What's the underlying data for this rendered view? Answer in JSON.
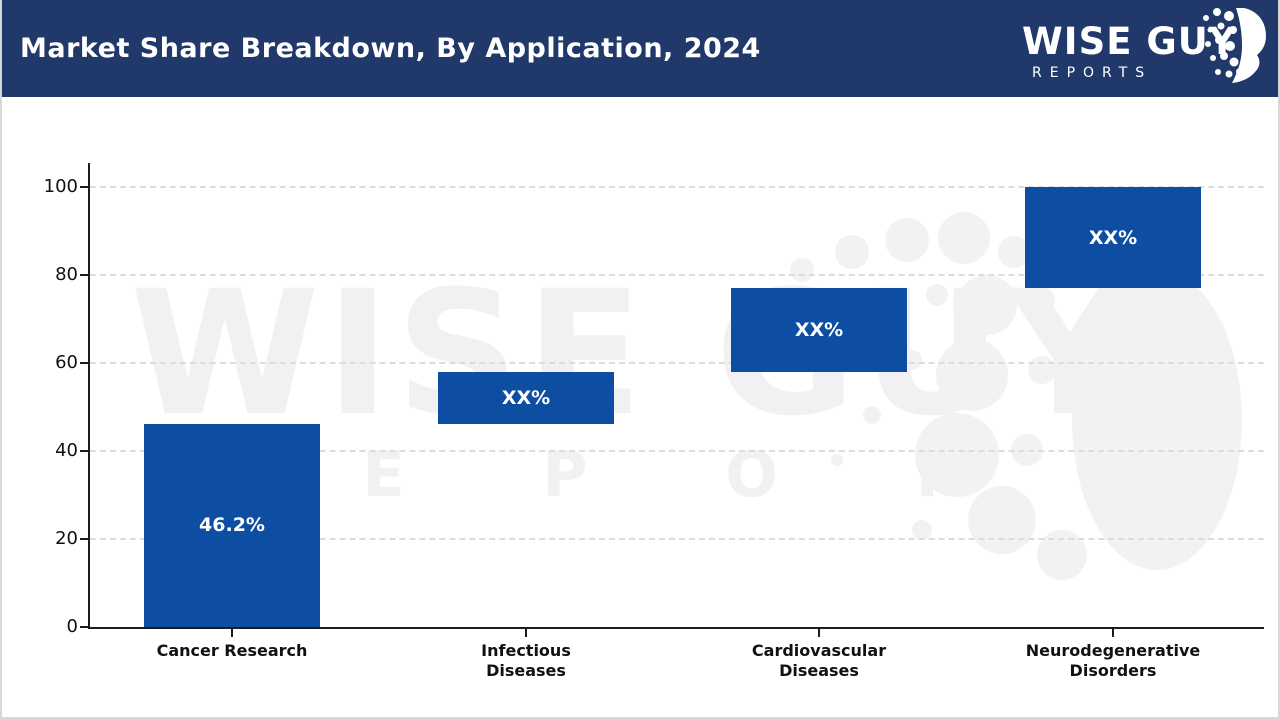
{
  "header": {
    "title": "Market Share Breakdown, By Application, 2024",
    "logo": {
      "line1": "WISE GUY",
      "line2": "R E P O R T S"
    }
  },
  "watermark": {
    "line1": "WISE GUY",
    "line2": "R E P O R T S"
  },
  "colors": {
    "header_bg": "#21386a",
    "bar": "#0d4da2",
    "bar_label": "#ffffff",
    "grid": "#dcdcdc",
    "axis": "#1c1c1c",
    "watermark": "#f1f1f4"
  },
  "chart_data": {
    "type": "bar",
    "subtype": "waterfall",
    "title": "Market Share Breakdown, By Application, 2024",
    "xlabel": "",
    "ylabel": "",
    "ylim": [
      0,
      100
    ],
    "yticks": [
      0,
      20,
      40,
      60,
      80,
      100
    ],
    "grid": "horizontal-dashed",
    "legend": "none",
    "categories": [
      "Cancer Research",
      "Infectious Diseases",
      "Cardiovascular Diseases",
      "Neurodegenerative Disorders"
    ],
    "series": [
      {
        "category_lines": [
          "Cancer Research"
        ],
        "start": 0,
        "end": 46.2,
        "value": 46.2,
        "label": "46.2%"
      },
      {
        "category_lines": [
          "Infectious",
          "Diseases"
        ],
        "start": 46.2,
        "end": 58,
        "value": 11.8,
        "label": "XX%"
      },
      {
        "category_lines": [
          "Cardiovascular",
          "Diseases"
        ],
        "start": 58,
        "end": 77,
        "value": 19,
        "label": "XX%"
      },
      {
        "category_lines": [
          "Neurodegenerative",
          "Disorders"
        ],
        "start": 77,
        "end": 100,
        "value": 23,
        "label": "XX%"
      }
    ]
  }
}
